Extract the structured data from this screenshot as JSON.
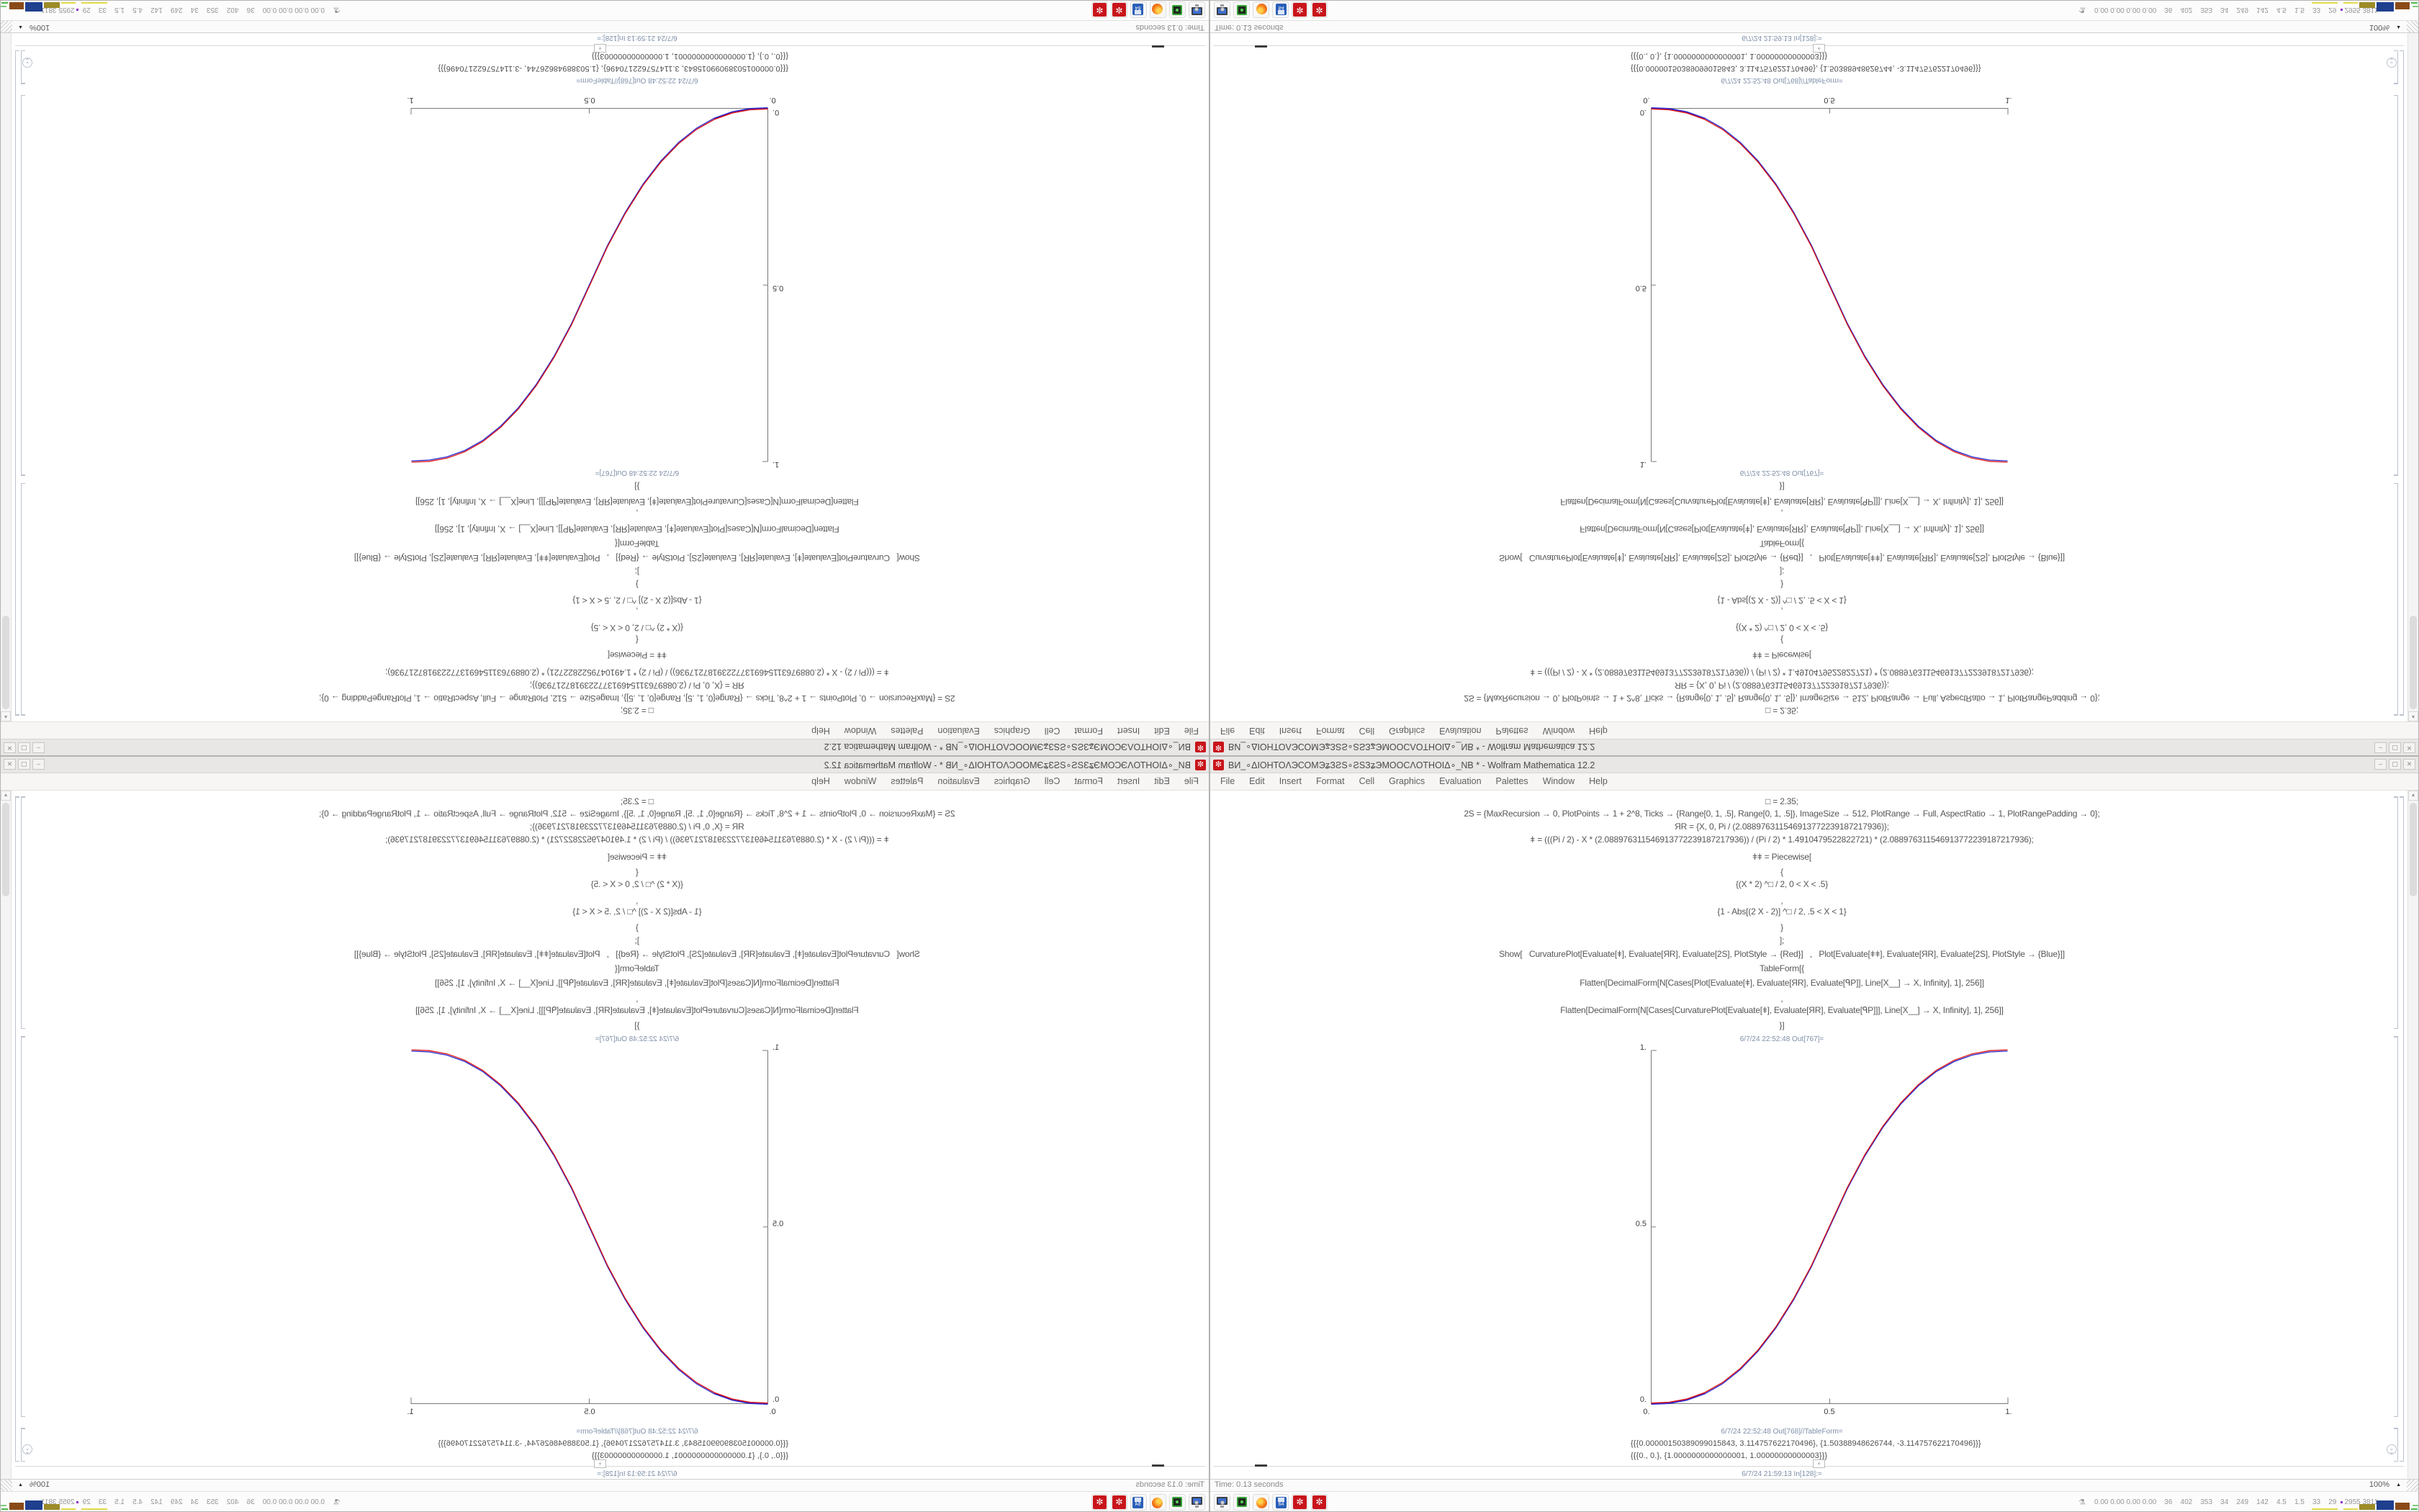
{
  "app": {
    "title": "ВИ_∘ΔІОНТОΛЭСОМЭʑЗƧS∘ƧSЗʑЭМООСΛОТНОІΔ∘_NB * - Wolfram Mathematica 12.2",
    "window_controls": {
      "minimize": "–",
      "maximize": "▢",
      "close": "✕"
    },
    "menu": [
      "File",
      "Edit",
      "Insert",
      "Format",
      "Cell",
      "Graphics",
      "Evaluation",
      "Palettes",
      "Window",
      "Help"
    ]
  },
  "notebook": {
    "input_cell_lines": [
      "□ = 2.35;",
      "2S = {MaxRecursion → 0, PlotPoints → 1 + 2^8, Ticks → {Range[0, 1, .5], Range[0, 1, .5]}, ImageSize → 512, PlotRange → Full, AspectRatio → 1, PlotRangePadding → 0};",
      "ЯR = {X, 0, Pi / (2.088976311546913772239187217936)};",
      "ǂ = (((Pi / 2) - X * (2.088976311546913772239187217936)) / (Pi / 2) * 1.4910479522822721) * (2.088976311546913772239187217936);"
    ],
    "piecewise_lines": [
      "ǂǂ = Piecewise[",
      "{",
      "{(X * 2) ^□ / 2, 0 < X < .5}",
      ",",
      "{1 - Abs[(2 X - 2)] ^□ / 2, .5 < X < 1}",
      "}",
      "];"
    ],
    "show_line": "Show[   CurvaturePlot[Evaluate[ǂ], Evaluate[ЯR], Evaluate[2S], PlotStyle → {Red}]   ,   Plot[Evaluate[ǂǂ], Evaluate[ЯR], Evaluate[2S], PlotStyle → {Blue}]]",
    "tableform_lines": [
      "TableForm[{",
      "Flatten[DecimalForm[N[Cases[Plot[Evaluate[ǂ], Evaluate[ЯR], Evaluate[ᑫP]], Line[X__] → X, Infinity], 1], 256]]",
      ",",
      "Flatten[DecimalForm[N[Cases[CurvaturePlot[Evaluate[ǂ], Evaluate[ЯR], Evaluate[ᑫP]]], Line[X__] → X, Infinity], 1], 256]]",
      "}]"
    ],
    "out_plot_label": "6/7/24 22:52:48 Out[767]=",
    "out_table_label": "6/7/24 22:52:48 Out[768]//TableForm=",
    "out_table_lines": [
      "{{{0.00000150389099015843, 3.114757622170496}, {1.50388948626744, -3.114757622170496}}}",
      "{{{0., 0.}, {1.0000000000000001, 1.00000000000003}}}"
    ],
    "next_in_label": "6/7/24 21:59:13 In[128]:=",
    "insert_plus": "+"
  },
  "chart_data": {
    "type": "line",
    "title": "",
    "xlabel": "",
    "ylabel": "",
    "xlim": [
      0,
      1
    ],
    "ylim": [
      0,
      1
    ],
    "xticks": [
      "0.",
      "0.5",
      "1."
    ],
    "yticks": [
      "1.",
      "0.5",
      "0."
    ],
    "grid": false,
    "legend": "none",
    "x": [
      0,
      0.05,
      0.1,
      0.15,
      0.2,
      0.25,
      0.3,
      0.35,
      0.4,
      0.45,
      0.5,
      0.55,
      0.6,
      0.65,
      0.7,
      0.75,
      0.8,
      0.85,
      0.9,
      0.95,
      1
    ],
    "series": [
      {
        "name": "CurvaturePlot (Red)",
        "color": "#dd1414",
        "values": [
          0,
          0.0022,
          0.0114,
          0.0295,
          0.058,
          0.0981,
          0.1505,
          0.2162,
          0.296,
          0.3903,
          0.5,
          0.6097,
          0.704,
          0.7838,
          0.8495,
          0.9019,
          0.942,
          0.9705,
          0.9886,
          0.9978,
          1
        ]
      },
      {
        "name": "Plot (Blue)",
        "color": "#2626cf",
        "values": [
          0,
          0.0022,
          0.0114,
          0.0295,
          0.058,
          0.0981,
          0.1505,
          0.2162,
          0.296,
          0.3903,
          0.5,
          0.6097,
          0.704,
          0.7838,
          0.8495,
          0.9019,
          0.942,
          0.9705,
          0.9886,
          0.9978,
          1
        ]
      }
    ],
    "overlap_color": "#7a1f9e"
  },
  "status_bar": {
    "time": "Time: 0.13 seconds",
    "zoom": "100%"
  },
  "taskbar": {
    "tray_text": "0.00 0.00 0.00 0.00    36    402    353    34    249    142    4.5    1.5    33    29    2955 3811",
    "floppy_label": "64",
    "icons": [
      "monitor",
      "virtualbox",
      "firefox",
      "floppy-64",
      "mathematica",
      "mathematica"
    ]
  },
  "colors": {
    "titlebar_bg": "#e9e7e6",
    "mathematica_red": "#c8151b",
    "curve_red": "#dd1414",
    "curve_blue": "#2626cf",
    "curve_overlap": "#7a1f9e",
    "tray_navy": "#1f3f8f",
    "tray_brown": "#8a4a17",
    "tray_olive": "#9c8b28",
    "tray_yellow": "#e3d94e",
    "tray_green": "#4db84d"
  }
}
